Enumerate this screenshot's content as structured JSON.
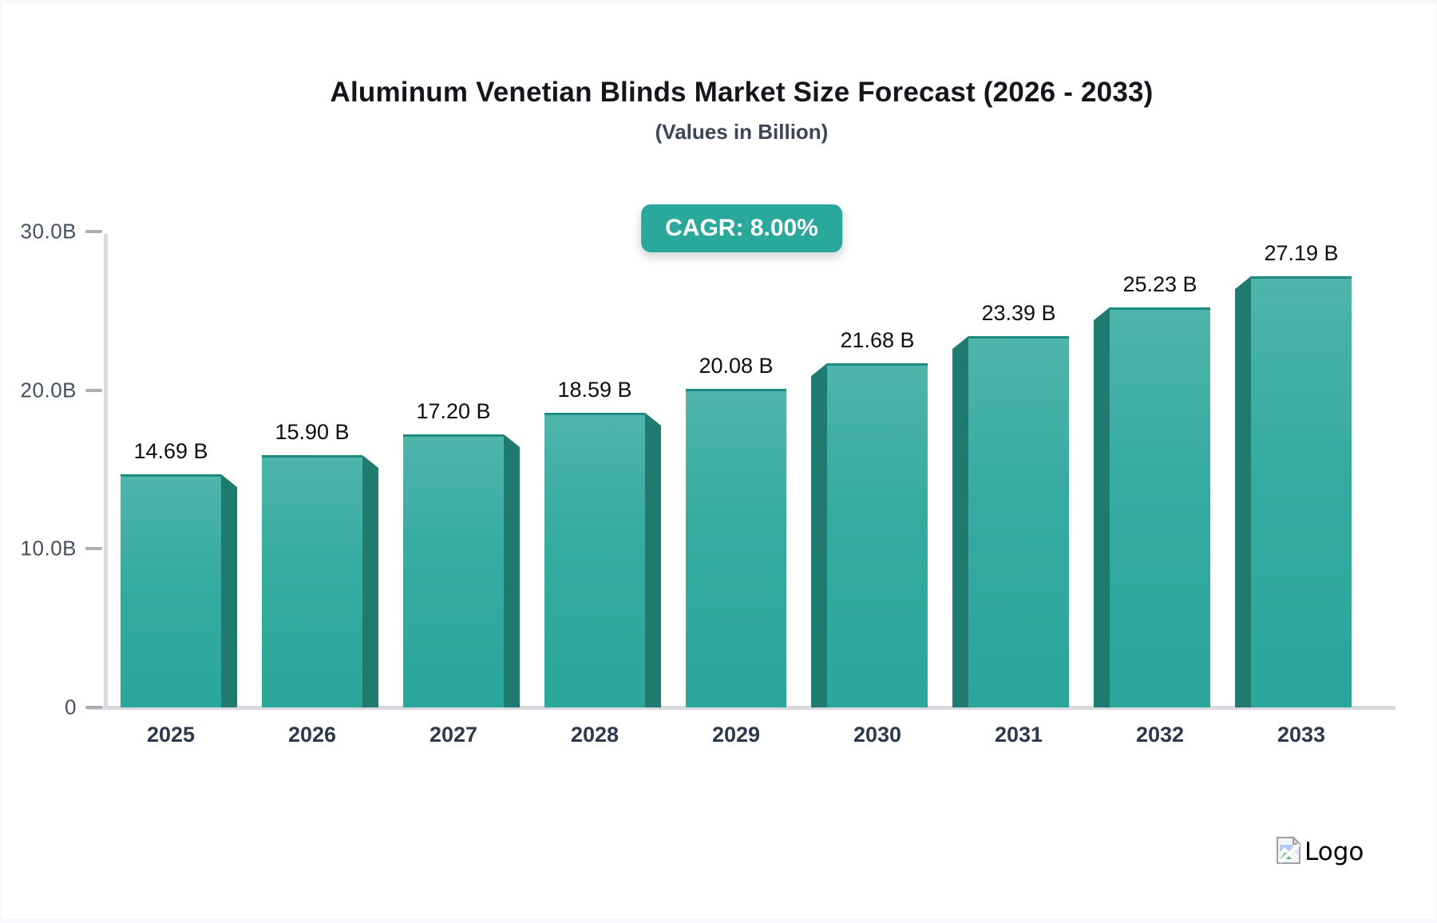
{
  "title": "Aluminum Venetian Blinds Market Size Forecast (2026 - 2033)",
  "subtitle": "(Values in Billion)",
  "badge": {
    "label": "CAGR: 8.00%",
    "bg_color": "#2aa89c"
  },
  "logo": {
    "alt_text": "Logo",
    "icon": "broken-image-icon"
  },
  "chart_data": {
    "type": "bar",
    "title": "Aluminum Venetian Blinds Market Size Forecast (2026 - 2033)",
    "subtitle": "(Values in Billion)",
    "categories": [
      "2025",
      "2026",
      "2027",
      "2028",
      "2029",
      "2030",
      "2031",
      "2032",
      "2033"
    ],
    "values": [
      14.69,
      15.9,
      17.2,
      18.59,
      20.08,
      21.68,
      23.39,
      25.23,
      27.19
    ],
    "value_labels": [
      "14.69 B",
      "15.90 B",
      "17.20 B",
      "18.59 B",
      "20.08 B",
      "21.68 B",
      "23.39 B",
      "25.23 B",
      "27.19 B"
    ],
    "xlabel": "",
    "ylabel": "",
    "ylim": [
      0,
      30
    ],
    "yticks": [
      {
        "value": 0,
        "label": "0"
      },
      {
        "value": 10,
        "label": "10.0B"
      },
      {
        "value": 20,
        "label": "20.0B"
      },
      {
        "value": 30,
        "label": "30.0B"
      }
    ],
    "grid": false,
    "legend": "none",
    "bar_style": {
      "face_top_color": "#4fb5ab",
      "face_bottom_color": "#2aa69a",
      "top_edge_color": "#1f8a80",
      "side_color": "#1f7a70",
      "effect": "pseudo-3d, side bevel faces away from center bar"
    },
    "annotation": "CAGR: 8.00%"
  }
}
